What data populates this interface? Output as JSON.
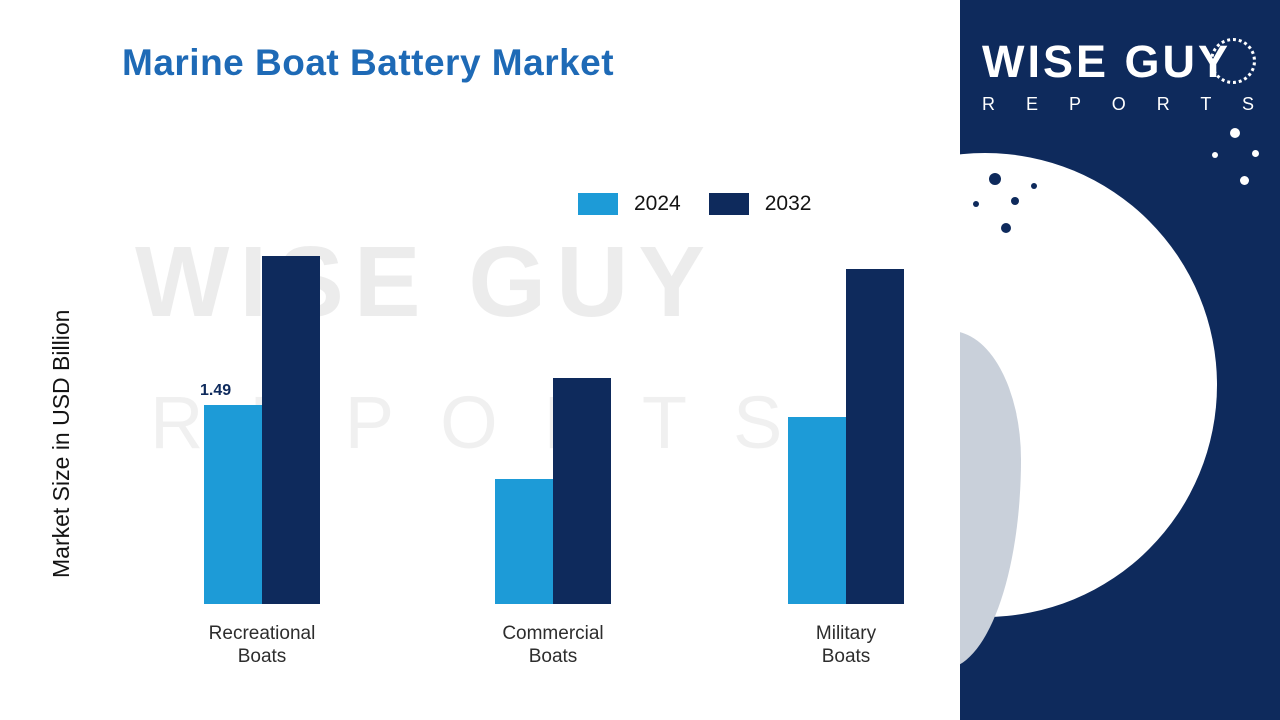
{
  "page": {
    "title": "Marine Boat Battery Market"
  },
  "logo": {
    "line1": "WISE GUY",
    "line2": "R E P O R T S"
  },
  "watermark": {
    "line1": "WISE GUY",
    "line2": "REPORTS"
  },
  "colors": {
    "title_blue": "#1e6ab6",
    "series_2024": "#1d9bd7",
    "series_2032": "#0e2a5c",
    "brand_band": "#0e2a5c"
  },
  "chart_data": {
    "type": "bar",
    "title": "Marine Boat Battery Market",
    "xlabel": "",
    "ylabel": "Market Size in USD Billion",
    "categories": [
      "Recreational\nBoats",
      "Commercial\nBoats",
      "Military\nBoats"
    ],
    "series": [
      {
        "name": "2024",
        "color": "#1d9bd7",
        "values": [
          1.49,
          0.94,
          1.4
        ]
      },
      {
        "name": "2032",
        "color": "#0e2a5c",
        "values": [
          2.61,
          1.69,
          2.51
        ]
      }
    ],
    "data_label": {
      "series": 0,
      "group": 0,
      "text": "1.49"
    },
    "ylim": [
      0,
      3
    ],
    "grid": false,
    "legend_position": "top-center"
  }
}
